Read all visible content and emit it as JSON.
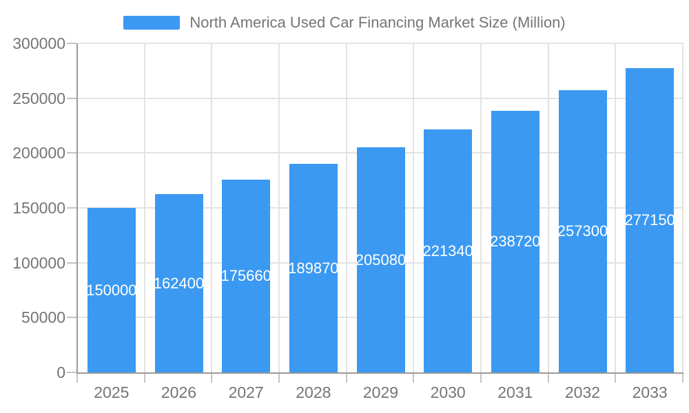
{
  "legend": {
    "label": "North America Used Car Financing Market Size (Million)",
    "swatch_icon": "legend-color-swatch"
  },
  "chart_data": {
    "type": "bar",
    "title": "North America Used Car Financing Market Size (Million)",
    "categories": [
      "2025",
      "2026",
      "2027",
      "2028",
      "2029",
      "2030",
      "2031",
      "2032",
      "2033"
    ],
    "values": [
      150000,
      162400,
      175660,
      189870,
      205080,
      221340,
      238720,
      257300,
      277150
    ],
    "xlabel": "",
    "ylabel": "",
    "ylim": [
      0,
      300000
    ],
    "yticks": [
      0,
      50000,
      100000,
      150000,
      200000,
      250000,
      300000
    ],
    "grid": true,
    "legend_position": "top",
    "bar_label_position": "inside-center"
  },
  "colors": {
    "bar": "#3B99F1",
    "bar_label": "#FFFFFF",
    "axis_line": "#9A9A9A",
    "tick": "#C4C4C4",
    "grid_line": "#E3E3E3",
    "text": "#757575",
    "background": "#FFFFFF"
  }
}
